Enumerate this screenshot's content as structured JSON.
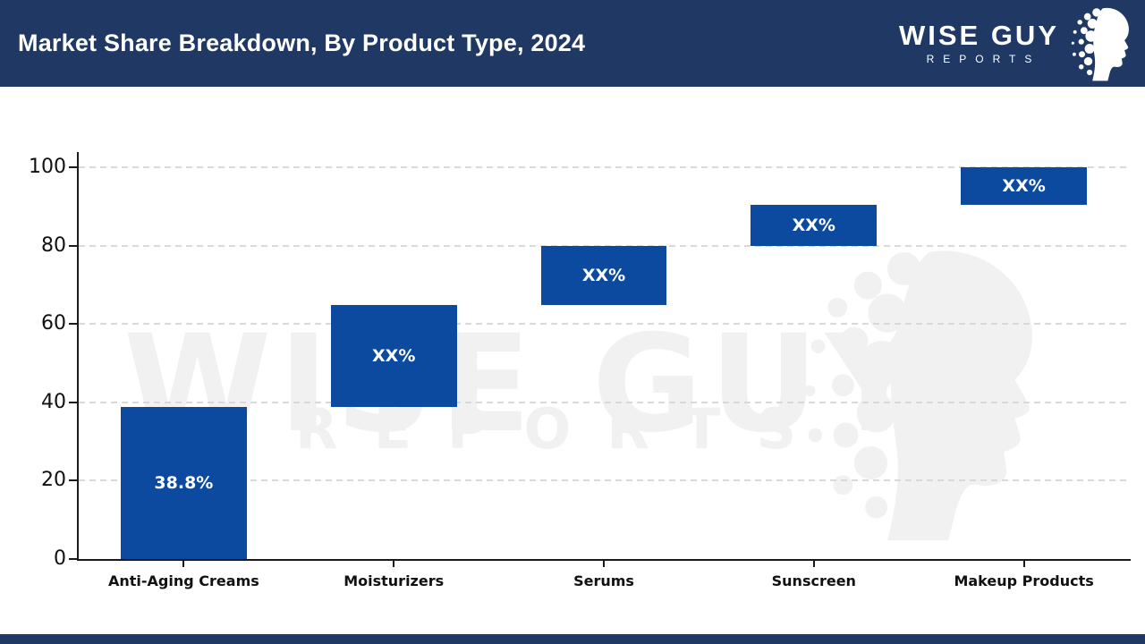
{
  "header": {
    "title": "Market Share Breakdown, By Product Type, 2024",
    "logo_line1": "WISE GUY",
    "logo_line2": "REPORTS"
  },
  "watermark": {
    "line1": "WISE GUY",
    "line2": "REPORTS"
  },
  "colors": {
    "header_bg": "#1f3864",
    "footer_bg": "#1f3864",
    "bar": "#0b4a9f",
    "bar_label": "#ffffff",
    "grid": "#d9d9d9",
    "axis": "#1a1a1a",
    "tick_label": "#111111",
    "watermark": "#f1f1f1"
  },
  "chart_data": {
    "type": "bar",
    "subtype": "waterfall",
    "title": "Market Share Breakdown, By Product Type, 2024",
    "categories": [
      "Anti-Aging Creams",
      "Moisturizers",
      "Serums",
      "Sunscreen",
      "Makeup Products"
    ],
    "bars": [
      {
        "category": "Anti-Aging Creams",
        "start": 0,
        "end": 38.8,
        "label": "38.8%"
      },
      {
        "category": "Moisturizers",
        "start": 38.8,
        "end": 64.8,
        "label": "XX%"
      },
      {
        "category": "Serums",
        "start": 64.8,
        "end": 80.0,
        "label": "XX%"
      },
      {
        "category": "Sunscreen",
        "start": 80.0,
        "end": 90.3,
        "label": "XX%"
      },
      {
        "category": "Makeup Products",
        "start": 90.3,
        "end": 100.0,
        "label": "XX%"
      }
    ],
    "series": [
      {
        "name": "Market Share (%)",
        "values": [
          38.8,
          26.0,
          15.2,
          10.3,
          9.7
        ]
      }
    ],
    "ylim": [
      0,
      100
    ],
    "yticks": [
      0,
      20,
      40,
      60,
      80,
      100
    ],
    "xlabel": "",
    "ylabel": "",
    "grid": "horizontal-dashed",
    "legend": "none",
    "bar_label_masked": "XX%"
  }
}
